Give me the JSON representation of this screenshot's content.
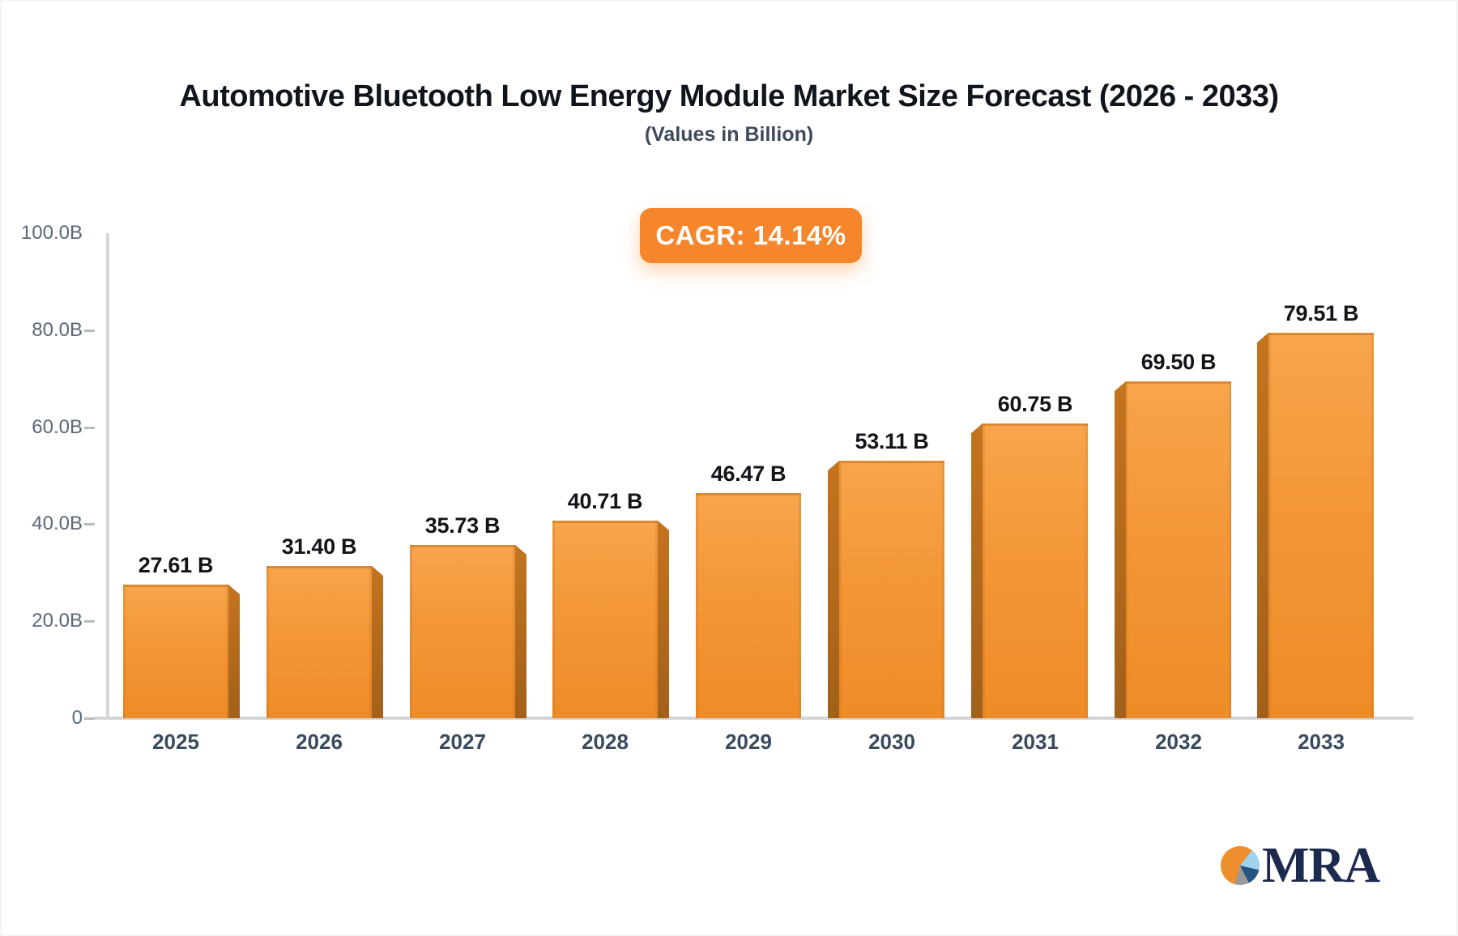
{
  "header": {
    "title": "Automotive Bluetooth Low Energy Module Market Size Forecast (2026 - 2033)",
    "subtitle": "(Values in Billion)"
  },
  "badge": {
    "label": "CAGR: 14.14%",
    "bg_color": "#f6862b",
    "text_color": "#ffffff"
  },
  "chart_data": {
    "type": "bar",
    "title": "Automotive Bluetooth Low Energy Module Market Size Forecast (2026 - 2033)",
    "subtitle": "(Values in Billion)",
    "cagr_label": "CAGR: 14.14%",
    "categories": [
      "2025",
      "2026",
      "2027",
      "2028",
      "2029",
      "2030",
      "2031",
      "2032",
      "2033"
    ],
    "values": [
      27.61,
      31.4,
      35.73,
      40.71,
      46.47,
      53.11,
      60.75,
      69.5,
      79.51
    ],
    "value_labels": [
      "27.61 B",
      "31.40 B",
      "35.73 B",
      "40.71 B",
      "46.47 B",
      "53.11 B",
      "60.75 B",
      "69.50 B",
      "79.51 B"
    ],
    "xlabel": "",
    "ylabel": "",
    "ylim": [
      0,
      100
    ],
    "y_ticks": [
      {
        "label": "100.0B",
        "value": 100,
        "dash": false
      },
      {
        "label": "80.0B",
        "value": 80,
        "dash": true
      },
      {
        "label": "60.0B",
        "value": 60,
        "dash": true
      },
      {
        "label": "40.0B",
        "value": 40,
        "dash": true
      },
      {
        "label": "20.0B",
        "value": 20,
        "dash": true
      },
      {
        "label": "0",
        "value": 0,
        "dash": true
      }
    ],
    "grid": false,
    "legend": "none",
    "bar_style": "3d-perspective-center"
  },
  "colors": {
    "bar_front_top": "#f8a54c",
    "bar_front_bottom": "#ee8c27",
    "bar_side": "#b26a1d",
    "axis_line": "#d4d5d7",
    "y_label": "#5a6878",
    "x_label": "#3a4a5e",
    "value_label": "#121418",
    "title": "#10151c",
    "subtitle": "#3e4a5c",
    "badge": "#f6862b"
  },
  "logo": {
    "text": "MRA",
    "pie_colors": [
      "#ef8e2d",
      "#9ed2ed",
      "#265380",
      "#9a9a9a"
    ]
  }
}
